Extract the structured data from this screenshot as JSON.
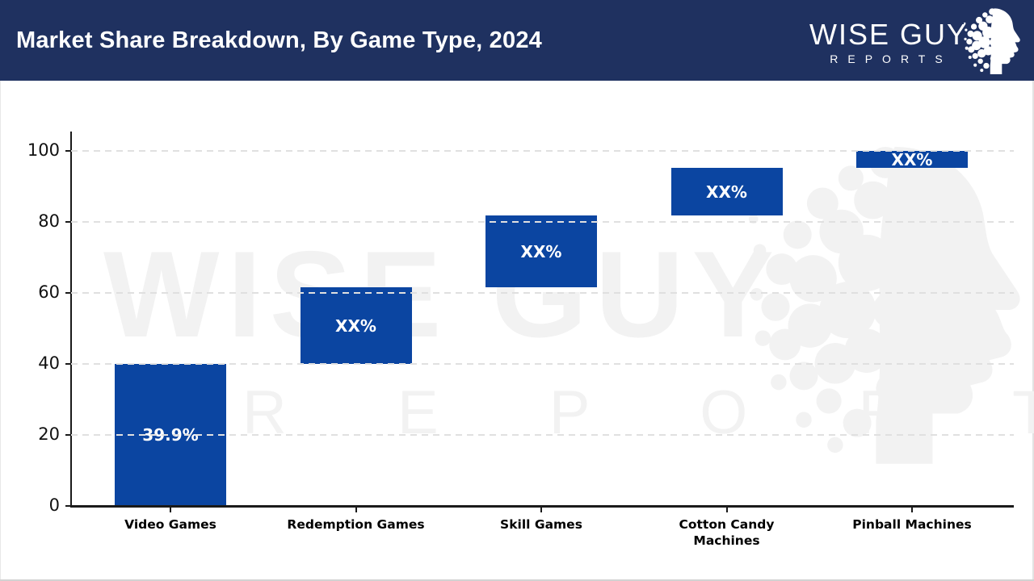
{
  "header": {
    "bg_color": "#1f3160",
    "title": "Market Share Breakdown, By Game Type, 2024",
    "logo": {
      "wordmark": "WISE GUY",
      "subtext": "REPORTS",
      "icon": "dotted-head-profile-icon",
      "color": "#ffffff"
    }
  },
  "watermark": {
    "wordmark": "WISE GUY",
    "subtext": "R E P O R T S",
    "icon": "dotted-head-profile-icon",
    "color": "#f2f2f2"
  },
  "chart_data": {
    "type": "bar",
    "subtype": "waterfall",
    "title": "Market Share Breakdown, By Game Type, 2024",
    "categories": [
      "Video Games",
      "Redemption Games",
      "Skill Games",
      "Cotton Candy Machines",
      "Pinball Machines"
    ],
    "segments": [
      {
        "category": "Video Games",
        "start": 0,
        "end": 39.9,
        "value": 39.9,
        "label": "39.9%"
      },
      {
        "category": "Redemption Games",
        "start": 39.9,
        "end": 61.6,
        "value": 21.7,
        "label": "XX%"
      },
      {
        "category": "Skill Games",
        "start": 61.6,
        "end": 81.8,
        "value": 20.2,
        "label": "XX%"
      },
      {
        "category": "Cotton Candy Machines",
        "start": 81.8,
        "end": 95.2,
        "value": 13.4,
        "label": "XX%"
      },
      {
        "category": "Pinball Machines",
        "start": 95.2,
        "end": 100,
        "value": 4.8,
        "label": "XX%"
      }
    ],
    "y_ticks": [
      0,
      20,
      40,
      60,
      80,
      100
    ],
    "ylim": [
      0,
      105
    ],
    "xlabel": "",
    "ylabel": "",
    "legend": "none",
    "grid": {
      "axis": "y",
      "style": "dashed",
      "color": "#e0e0e0"
    },
    "bar_color": "#0b45a1",
    "bar_label_color": "#ffffff",
    "axis_color": "#1a1a1a"
  }
}
